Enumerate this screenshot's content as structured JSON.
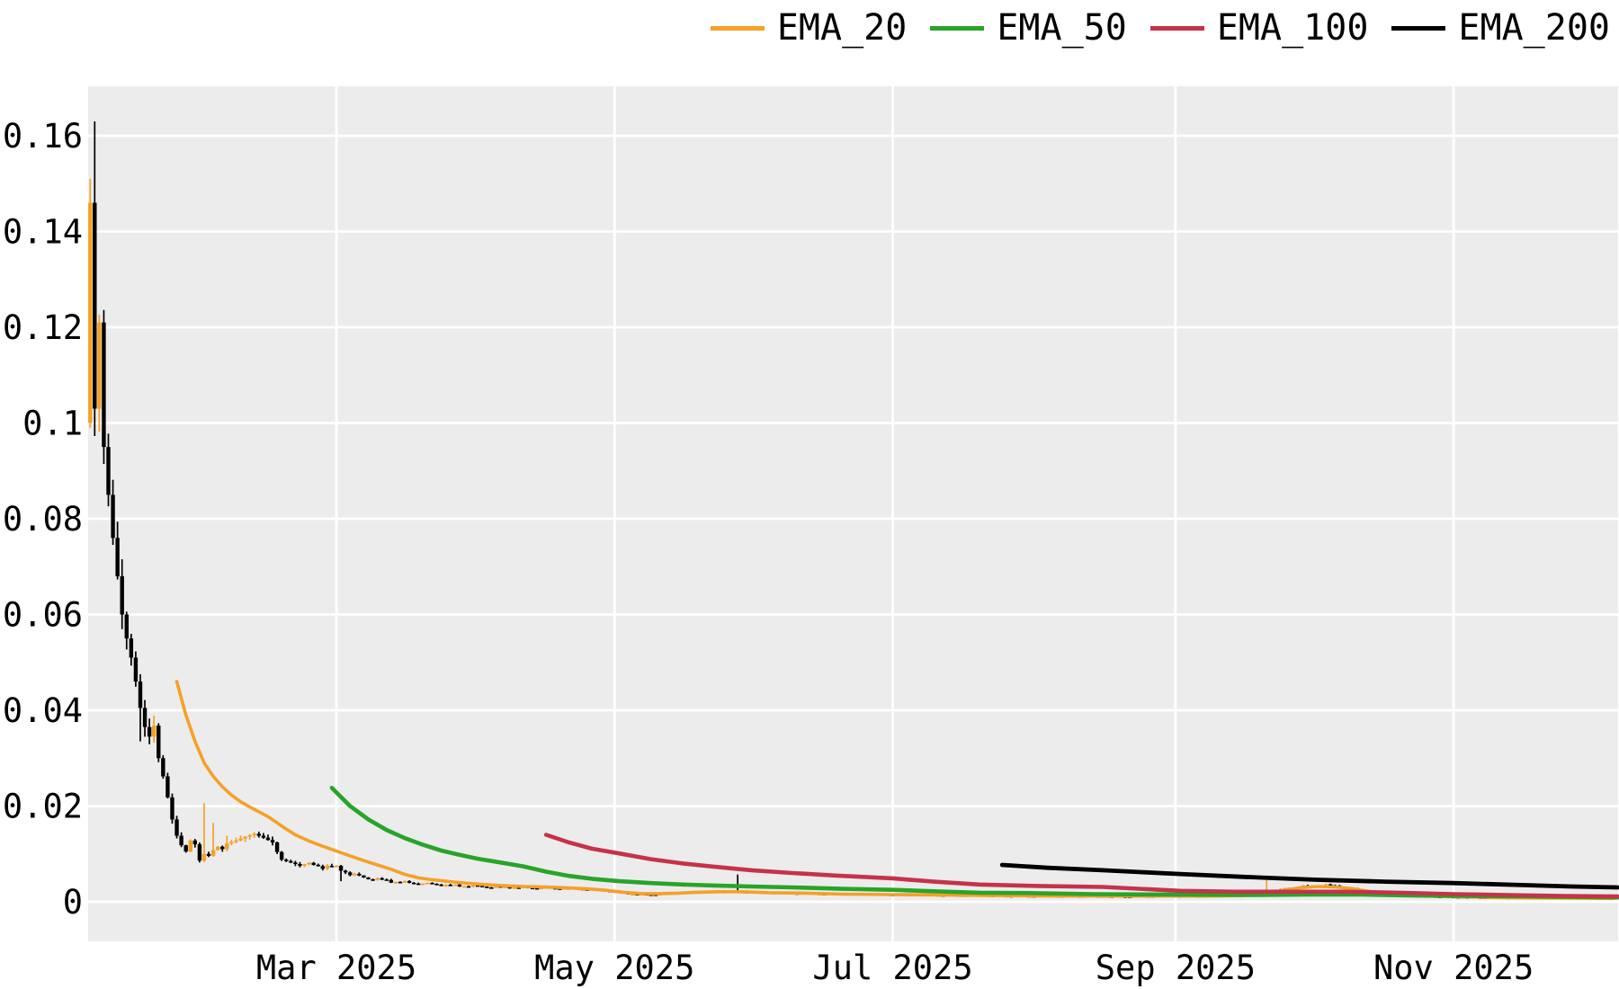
{
  "page": {
    "background": "#ffffff"
  },
  "legend": {
    "items": [
      {
        "label": "EMA_20",
        "color": "#f5a028"
      },
      {
        "label": "EMA_50",
        "color": "#28a428"
      },
      {
        "label": "EMA_100",
        "color": "#c43349"
      },
      {
        "label": "EMA_200",
        "color": "#000000"
      }
    ]
  },
  "chart_data": {
    "type": "candlestick",
    "title": "",
    "x_axis": {
      "unit": "days since 2025-01-01",
      "range": [
        4,
        340
      ],
      "ticks": [
        {
          "day": 59,
          "label": "Mar 2025"
        },
        {
          "day": 120,
          "label": "May 2025"
        },
        {
          "day": 181,
          "label": "Jul 2025"
        },
        {
          "day": 243,
          "label": "Sep 2025"
        },
        {
          "day": 304,
          "label": "Nov 2025"
        }
      ]
    },
    "y_axis": {
      "range": [
        -0.0083,
        0.1705
      ],
      "ticks": [
        {
          "value": 0,
          "label": "0"
        },
        {
          "value": 0.02,
          "label": "0.02"
        },
        {
          "value": 0.04,
          "label": "0.04"
        },
        {
          "value": 0.06,
          "label": "0.06"
        },
        {
          "value": 0.08,
          "label": "0.08"
        },
        {
          "value": 0.1,
          "label": "0.1"
        },
        {
          "value": 0.12,
          "label": "0.12"
        },
        {
          "value": 0.14,
          "label": "0.14"
        },
        {
          "value": 0.16,
          "label": "0.16"
        }
      ]
    },
    "plot_style": {
      "background": "#ececec",
      "grid_color": "#ffffff",
      "up_color": "#f5a028",
      "down_color": "#000000"
    },
    "price_candles": {
      "comment": "close keypoints [day, close] estimated from pixels; daily candles interpolated",
      "close_keypoints": [
        [
          4,
          0.1
        ],
        [
          5,
          0.146
        ],
        [
          6,
          0.103
        ],
        [
          7,
          0.121
        ],
        [
          8,
          0.095
        ],
        [
          9,
          0.085
        ],
        [
          10,
          0.076
        ],
        [
          11,
          0.068
        ],
        [
          12,
          0.06
        ],
        [
          13,
          0.055
        ],
        [
          14,
          0.051
        ],
        [
          15,
          0.046
        ],
        [
          16,
          0.0405
        ],
        [
          17,
          0.0365
        ],
        [
          18,
          0.0345
        ],
        [
          19,
          0.0368
        ],
        [
          20,
          0.03
        ],
        [
          21,
          0.0262
        ],
        [
          22,
          0.0218
        ],
        [
          23,
          0.0172
        ],
        [
          24,
          0.0138
        ],
        [
          25,
          0.0118
        ],
        [
          26,
          0.0105
        ],
        [
          27,
          0.0128
        ],
        [
          28,
          0.012
        ],
        [
          29,
          0.0086
        ],
        [
          30,
          0.01
        ],
        [
          31,
          0.0096
        ],
        [
          32,
          0.0108
        ],
        [
          33,
          0.0115
        ],
        [
          34,
          0.011
        ],
        [
          35,
          0.0122
        ],
        [
          37,
          0.0128
        ],
        [
          39,
          0.0136
        ],
        [
          41,
          0.0142
        ],
        [
          43,
          0.0134
        ],
        [
          45,
          0.0124
        ],
        [
          46,
          0.0104
        ],
        [
          47,
          0.0088
        ],
        [
          49,
          0.0082
        ],
        [
          52,
          0.0078
        ],
        [
          55,
          0.0075
        ],
        [
          58,
          0.0073
        ],
        [
          60,
          0.0068
        ],
        [
          62,
          0.0058
        ],
        [
          64,
          0.0053
        ],
        [
          66,
          0.0049
        ],
        [
          68,
          0.0047
        ],
        [
          70,
          0.0044
        ],
        [
          73,
          0.0041
        ],
        [
          76,
          0.0039
        ],
        [
          80,
          0.0037
        ],
        [
          84,
          0.0034
        ],
        [
          88,
          0.0033
        ],
        [
          93,
          0.0031
        ],
        [
          98,
          0.003
        ],
        [
          103,
          0.0029
        ],
        [
          108,
          0.0028
        ],
        [
          112,
          0.0027
        ],
        [
          116,
          0.0025
        ],
        [
          120,
          0.0022
        ],
        [
          123,
          0.0017
        ],
        [
          126,
          0.0015
        ],
        [
          130,
          0.0016
        ],
        [
          134,
          0.0019
        ],
        [
          138,
          0.0021
        ],
        [
          143,
          0.0021
        ],
        [
          146,
          0.0022
        ],
        [
          147,
          0.002
        ],
        [
          152,
          0.002
        ],
        [
          158,
          0.0018
        ],
        [
          164,
          0.0017
        ],
        [
          172,
          0.0016
        ],
        [
          181,
          0.0015
        ],
        [
          190,
          0.0014
        ],
        [
          200,
          0.0013
        ],
        [
          210,
          0.0012
        ],
        [
          220,
          0.0012
        ],
        [
          230,
          0.0011
        ],
        [
          240,
          0.0012
        ],
        [
          250,
          0.0012
        ],
        [
          256,
          0.0013
        ],
        [
          260,
          0.0015
        ],
        [
          263,
          0.002
        ],
        [
          266,
          0.0026
        ],
        [
          269,
          0.003
        ],
        [
          272,
          0.0033
        ],
        [
          275,
          0.0035
        ],
        [
          278,
          0.0033
        ],
        [
          281,
          0.0028
        ],
        [
          284,
          0.0023
        ],
        [
          287,
          0.0019
        ],
        [
          290,
          0.0016
        ],
        [
          294,
          0.0013
        ],
        [
          298,
          0.0012
        ],
        [
          303,
          0.001
        ],
        [
          310,
          0.0009
        ],
        [
          318,
          0.00085
        ],
        [
          326,
          0.0008
        ],
        [
          334,
          0.00075
        ],
        [
          339,
          0.0007
        ]
      ],
      "high_spikes": [
        [
          5,
          0.151
        ],
        [
          6,
          0.163
        ],
        [
          30,
          0.0206
        ],
        [
          32,
          0.0165
        ],
        [
          35,
          0.0138
        ],
        [
          47,
          0.0106
        ],
        [
          147,
          0.0057
        ],
        [
          263,
          0.0045
        ]
      ],
      "low_spikes": [
        [
          5,
          0.099
        ],
        [
          16,
          0.0335
        ],
        [
          60,
          0.0043
        ],
        [
          124,
          0.0013
        ]
      ]
    },
    "series": [
      {
        "name": "EMA_20",
        "color": "#f5a028",
        "width": 3.6,
        "points": [
          [
            24,
            0.046
          ],
          [
            26,
            0.039
          ],
          [
            28,
            0.0335
          ],
          [
            30,
            0.029
          ],
          [
            32,
            0.0262
          ],
          [
            34,
            0.024
          ],
          [
            36,
            0.0223
          ],
          [
            38,
            0.0209
          ],
          [
            40,
            0.0198
          ],
          [
            42,
            0.0188
          ],
          [
            44,
            0.0178
          ],
          [
            46,
            0.0165
          ],
          [
            48,
            0.0152
          ],
          [
            50,
            0.014
          ],
          [
            53,
            0.0127
          ],
          [
            56,
            0.0116
          ],
          [
            59,
            0.0106
          ],
          [
            62,
            0.0096
          ],
          [
            65,
            0.0086
          ],
          [
            68,
            0.0077
          ],
          [
            71,
            0.0068
          ],
          [
            74,
            0.0057
          ],
          [
            77,
            0.005
          ],
          [
            80,
            0.0046
          ],
          [
            83,
            0.0043
          ],
          [
            86,
            0.004
          ],
          [
            90,
            0.0037
          ],
          [
            95,
            0.0034
          ],
          [
            100,
            0.0032
          ],
          [
            105,
            0.0031
          ],
          [
            110,
            0.0029
          ],
          [
            114,
            0.0027
          ],
          [
            118,
            0.0024
          ],
          [
            122,
            0.002
          ],
          [
            126,
            0.0017
          ],
          [
            130,
            0.0017
          ],
          [
            134,
            0.0018
          ],
          [
            138,
            0.002
          ],
          [
            143,
            0.0021
          ],
          [
            148,
            0.0021
          ],
          [
            154,
            0.0019
          ],
          [
            162,
            0.0018
          ],
          [
            170,
            0.0016
          ],
          [
            181,
            0.0015
          ],
          [
            192,
            0.0014
          ],
          [
            204,
            0.0013
          ],
          [
            216,
            0.0012
          ],
          [
            228,
            0.0012
          ],
          [
            240,
            0.0012
          ],
          [
            252,
            0.0012
          ],
          [
            258,
            0.0013
          ],
          [
            262,
            0.0016
          ],
          [
            266,
            0.0023
          ],
          [
            270,
            0.0029
          ],
          [
            274,
            0.0032
          ],
          [
            278,
            0.0031
          ],
          [
            282,
            0.0027
          ],
          [
            286,
            0.0021
          ],
          [
            290,
            0.0017
          ],
          [
            294,
            0.0014
          ],
          [
            298,
            0.0012
          ],
          [
            304,
            0.0011
          ],
          [
            312,
            0.0009
          ],
          [
            322,
            0.0008
          ],
          [
            332,
            0.00075
          ],
          [
            339,
            0.0007
          ]
        ]
      },
      {
        "name": "EMA_50",
        "color": "#28a428",
        "width": 4.6,
        "points": [
          [
            58,
            0.0238
          ],
          [
            62,
            0.02
          ],
          [
            66,
            0.0172
          ],
          [
            70,
            0.015
          ],
          [
            74,
            0.0133
          ],
          [
            78,
            0.0119
          ],
          [
            82,
            0.0107
          ],
          [
            86,
            0.0098
          ],
          [
            90,
            0.009
          ],
          [
            95,
            0.0082
          ],
          [
            100,
            0.0074
          ],
          [
            105,
            0.0063
          ],
          [
            110,
            0.0054
          ],
          [
            115,
            0.0048
          ],
          [
            121,
            0.0043
          ],
          [
            128,
            0.0039
          ],
          [
            135,
            0.0036
          ],
          [
            142,
            0.0034
          ],
          [
            150,
            0.0032
          ],
          [
            159,
            0.003
          ],
          [
            170,
            0.0027
          ],
          [
            181,
            0.0025
          ],
          [
            190,
            0.0022
          ],
          [
            200,
            0.0019
          ],
          [
            212,
            0.0018
          ],
          [
            225,
            0.0016
          ],
          [
            244,
            0.0015
          ],
          [
            260,
            0.0014
          ],
          [
            272,
            0.0015
          ],
          [
            284,
            0.0015
          ],
          [
            296,
            0.0013
          ],
          [
            308,
            0.0012
          ],
          [
            320,
            0.0011
          ],
          [
            330,
            0.001
          ],
          [
            340,
            0.0009
          ]
        ]
      },
      {
        "name": "EMA_100",
        "color": "#c43349",
        "width": 4.6,
        "points": [
          [
            105,
            0.014
          ],
          [
            110,
            0.0124
          ],
          [
            115,
            0.0111
          ],
          [
            121,
            0.0101
          ],
          [
            128,
            0.0089
          ],
          [
            135,
            0.008
          ],
          [
            142,
            0.0073
          ],
          [
            150,
            0.0066
          ],
          [
            159,
            0.006
          ],
          [
            168,
            0.0055
          ],
          [
            181,
            0.0049
          ],
          [
            190,
            0.0042
          ],
          [
            200,
            0.0036
          ],
          [
            213,
            0.0033
          ],
          [
            227,
            0.0031
          ],
          [
            244,
            0.0023
          ],
          [
            256,
            0.0021
          ],
          [
            268,
            0.0021
          ],
          [
            280,
            0.0021
          ],
          [
            292,
            0.0019
          ],
          [
            304,
            0.0016
          ],
          [
            316,
            0.0014
          ],
          [
            328,
            0.0012
          ],
          [
            340,
            0.0011
          ]
        ]
      },
      {
        "name": "EMA_200",
        "color": "#000000",
        "width": 4.8,
        "points": [
          [
            205,
            0.0077
          ],
          [
            215,
            0.0071
          ],
          [
            227,
            0.0066
          ],
          [
            244,
            0.0058
          ],
          [
            258,
            0.0052
          ],
          [
            274,
            0.0046
          ],
          [
            289,
            0.0042
          ],
          [
            304,
            0.0039
          ],
          [
            319,
            0.0035
          ],
          [
            330,
            0.0032
          ],
          [
            340,
            0.003
          ]
        ]
      }
    ]
  }
}
